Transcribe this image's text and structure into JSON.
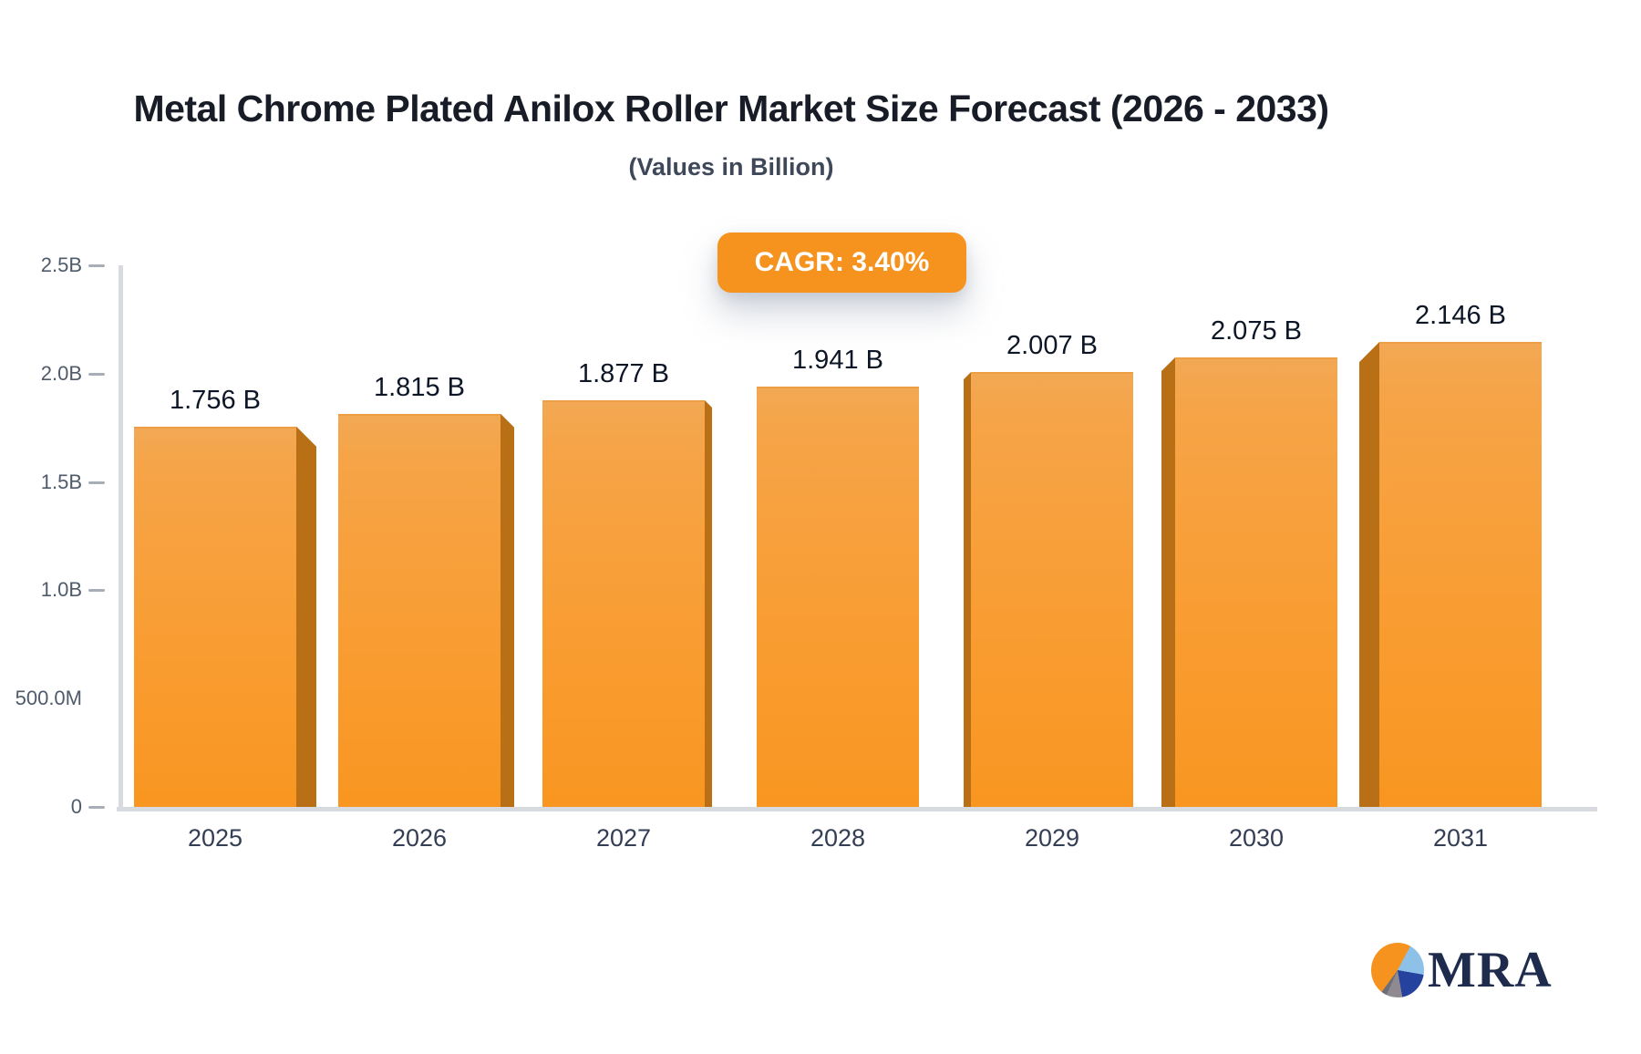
{
  "header": {
    "title": "Metal Chrome Plated Anilox Roller Market Size Forecast (2026 - 2033)",
    "subtitle": "(Values in Billion)"
  },
  "badge": {
    "label": "CAGR: 3.40%",
    "background_color": "#f6921e",
    "text_color": "#ffffff"
  },
  "logo": {
    "text": "MRA",
    "pie_icon_colors": [
      "#f6921e",
      "#8ec1e8",
      "#24429e",
      "#8f8a90"
    ]
  },
  "colors": {
    "bar_face": "#f89b2e",
    "bar_face_light": "#f2a854",
    "bar_side": "#b96f16",
    "axis_line": "#d7dade",
    "y_label": "#4f5b6b",
    "x_label": "#333e54",
    "value_label": "#0d1626",
    "title": "#171c26",
    "subtitle": "#3e4859"
  },
  "chart_data": {
    "type": "bar",
    "title": "Metal Chrome Plated Anilox Roller Market Size Forecast (2026 - 2033)",
    "subtitle": "(Values in Billion)",
    "annotation": "CAGR: 3.40%",
    "categories": [
      "2025",
      "2026",
      "2027",
      "2028",
      "2029",
      "2030",
      "2031"
    ],
    "values": [
      1.756,
      1.815,
      1.877,
      1.941,
      2.007,
      2.075,
      2.146
    ],
    "data_labels": [
      "1.756 B",
      "1.815 B",
      "1.877 B",
      "1.941 B",
      "2.007 B",
      "2.075 B",
      "2.146 B"
    ],
    "series_unit": "B",
    "xlabel": "",
    "ylabel": "",
    "ylim": [
      0,
      2.5
    ],
    "yticks": [
      {
        "label": "2.5B",
        "value": 2.5,
        "tick_mark": true
      },
      {
        "label": "2.0B",
        "value": 2.0,
        "tick_mark": true
      },
      {
        "label": "1.5B",
        "value": 1.5,
        "tick_mark": true
      },
      {
        "label": "1.0B",
        "value": 1.0,
        "tick_mark": true
      },
      {
        "label": "500.0M",
        "value": 0.5,
        "tick_mark": false
      },
      {
        "label": "0",
        "value": 0.0,
        "tick_mark": true
      }
    ],
    "grid": false,
    "legend": "none",
    "bar_style": "3d-perspective-center-vanishing-point"
  }
}
